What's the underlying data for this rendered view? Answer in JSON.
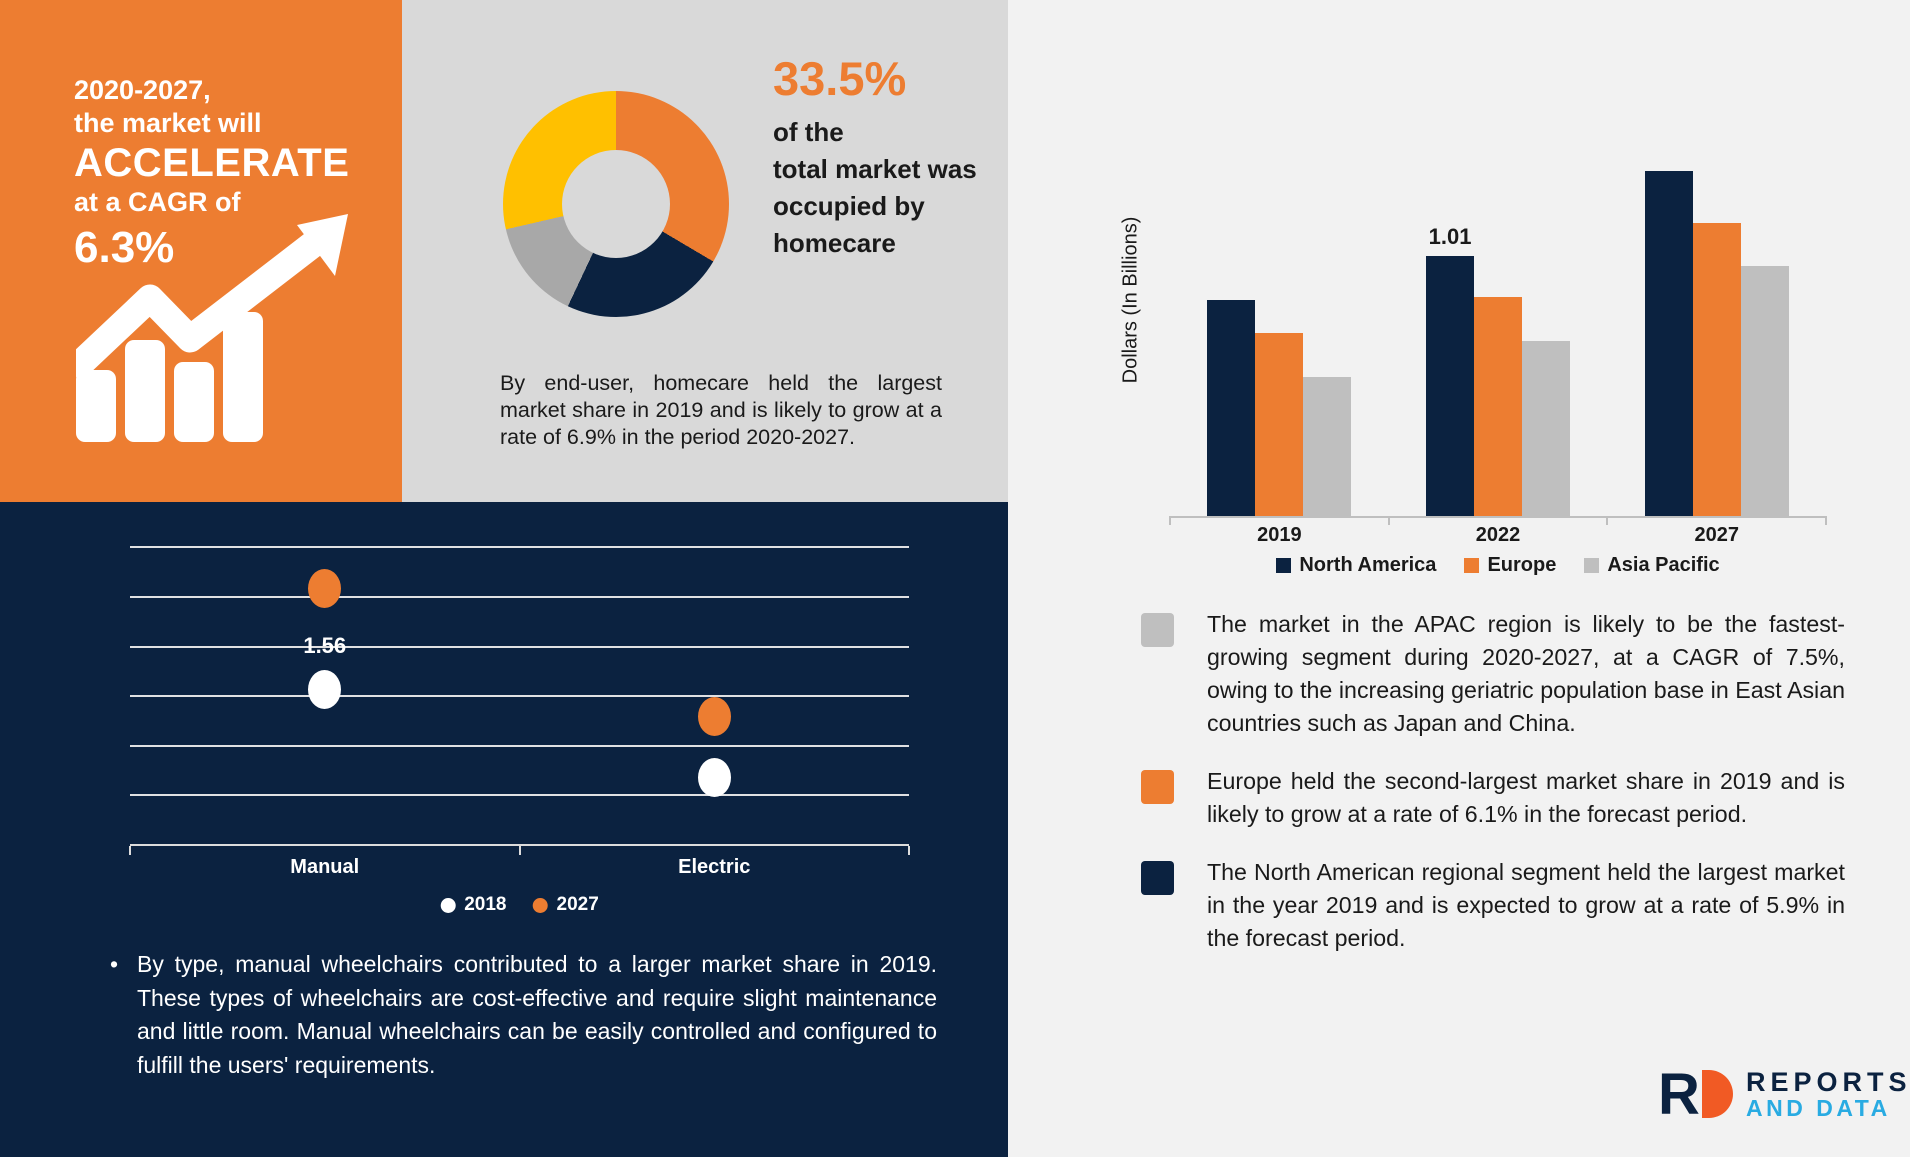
{
  "colors": {
    "orange": "#ED7D31",
    "navy": "#0B2240",
    "yellow": "#FFC000",
    "donut_gray": "#A8A8A8",
    "bar_gray": "#BFBFBF",
    "panel_gray": "#D9D9D9",
    "panel_white": "#F2F2F2",
    "logo_blue": "#29ABE2"
  },
  "accelerate_panel": {
    "period": "2020-2027,",
    "line2": "the market will",
    "emphasis": "ACCELERATE",
    "line4": "at a CAGR of",
    "cagr": "6.3%"
  },
  "homecare_panel": {
    "stat": "33.5%",
    "caption_lines": [
      "of the",
      "total market was",
      "occupied by",
      "homecare"
    ],
    "paragraph": "By end-user, homecare held the largest market share in 2019 and is likely to grow at a rate of 6.9% in the period 2020-2027."
  },
  "type_panel": {
    "bullet_glyph": "•",
    "bullet": "By type, manual wheelchairs contributed to a larger market share in 2019. These types of wheelchairs are cost-effective and require slight maintenance and little room. Manual wheelchairs can be easily controlled and configured to fulfill the users' requirements."
  },
  "regional_panel": {
    "bullets": [
      {
        "color": "#BFBFBF",
        "text": "The market in the APAC region is likely to be the fastest-growing segment during 2020-2027, at a CAGR of 7.5%, owing to the increasing geriatric population base in East Asian countries such as Japan and China."
      },
      {
        "color": "#ED7D31",
        "text": "Europe held the second-largest market share in 2019 and is likely to grow at a rate of 6.1% in the forecast period."
      },
      {
        "color": "#0B2240",
        "text": "The North American regional segment held the largest market in the year 2019 and is expected to grow at a rate of 5.9% in the forecast period."
      }
    ]
  },
  "logo": {
    "mark": "RD",
    "line1": "REPORTS",
    "line2": "AND DATA"
  },
  "chart_data": [
    {
      "type": "pie",
      "variant": "donut",
      "annotation": "33.5% of the total market was occupied by homecare",
      "legend_position": "none",
      "segments": [
        {
          "label": "homecare",
          "percent": 33.5,
          "color": "#ED7D31"
        },
        {
          "label": "",
          "percent": 23.5,
          "color": "#0B2240"
        },
        {
          "label": "",
          "percent": 14.4,
          "color": "#A8A8A8"
        },
        {
          "label": "",
          "percent": 28.6,
          "color": "#FFC000"
        }
      ]
    },
    {
      "type": "scatter",
      "variant": "dot-plot",
      "categories": [
        "Manual",
        "Electric"
      ],
      "series": [
        {
          "name": "2018",
          "color": "#FFFFFF",
          "values": [
            1.56,
            0.67
          ]
        },
        {
          "name": "2027",
          "color": "#ED7D31",
          "values": [
            2.58,
            1.29
          ]
        }
      ],
      "ylim": [
        0,
        3.0
      ],
      "gridline_step": 0.5,
      "grid": true,
      "legend_position": "bottom",
      "data_labels": [
        {
          "series": "2018",
          "category": "Manual",
          "text": "1.56"
        }
      ]
    },
    {
      "type": "bar",
      "categories": [
        "2019",
        "2022",
        "2027"
      ],
      "series": [
        {
          "name": "North America",
          "color": "#0B2240",
          "values": [
            0.84,
            1.01,
            1.34
          ]
        },
        {
          "name": "Europe",
          "color": "#ED7D31",
          "values": [
            0.71,
            0.85,
            1.14
          ]
        },
        {
          "name": "Asia Pacific",
          "color": "#BFBFBF",
          "values": [
            0.54,
            0.68,
            0.97
          ]
        }
      ],
      "ylabel": "Dollars (In Billions)",
      "ylim": [
        0,
        1.45
      ],
      "grid": false,
      "legend_position": "bottom",
      "data_labels": [
        {
          "series": "North America",
          "category": "2022",
          "text": "1.01"
        }
      ]
    }
  ]
}
